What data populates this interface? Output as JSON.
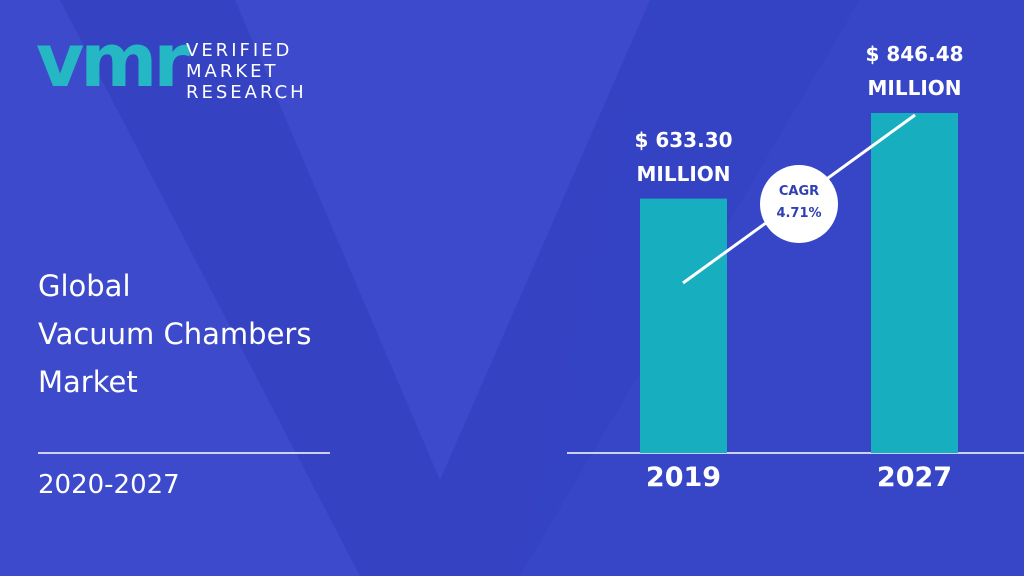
{
  "brand": {
    "logo": "vmr",
    "lines": [
      "VERIFIED",
      "MARKET",
      "RESEARCH"
    ]
  },
  "chart_data": {
    "type": "bar",
    "title": [
      "Global",
      "Vacuum Chambers",
      "Market"
    ],
    "period": "2020-2027",
    "categories": [
      "2019",
      "2027"
    ],
    "values": [
      633.3,
      846.48
    ],
    "value_labels": [
      "$ 633.30 MILLION",
      "$ 846.48 MILLION"
    ],
    "color": "#17aebf",
    "annotation": {
      "label": "CAGR",
      "value": "4.71%"
    }
  }
}
